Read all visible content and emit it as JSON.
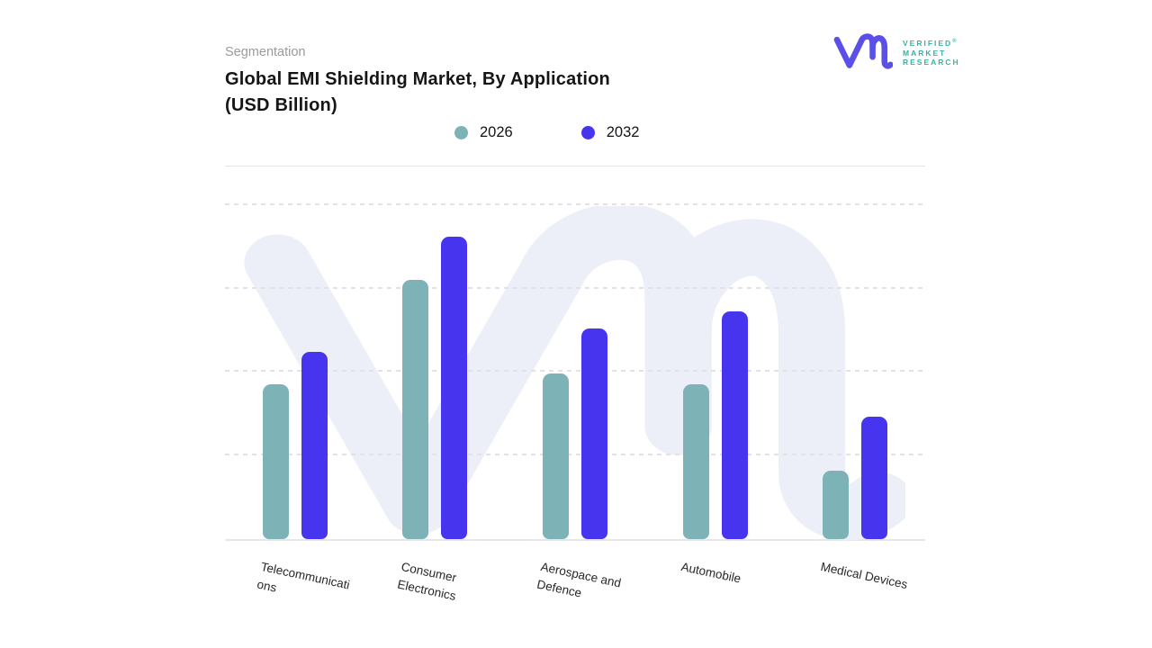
{
  "header": {
    "eyebrow": "Segmentation",
    "title_line1": "Global EMI Shielding Market, By Application",
    "title_line2": "(USD Billion)"
  },
  "logo": {
    "line1": "VERIFIED",
    "line2": "MARKET",
    "line3": "RESEARCH",
    "registered_mark": "®",
    "monogram_color": "#5a50e8",
    "text_color": "#34b3a6"
  },
  "legend": [
    {
      "label": "2026",
      "color": "#7db2b7"
    },
    {
      "label": "2032",
      "color": "#4634ee"
    }
  ],
  "chart_data": {
    "type": "bar",
    "title": "Global EMI Shielding Market, By Application (USD Billion)",
    "categories": [
      "Telecommunications",
      "Consumer Electronics",
      "Aerospace and Defence",
      "Automobile",
      "Medical Devices"
    ],
    "category_label_lines": [
      [
        "Telecommunicati",
        "ons"
      ],
      [
        "Consumer",
        "Electronics"
      ],
      [
        "Aerospace and",
        "Defence"
      ],
      [
        "Automobile"
      ],
      [
        "Medical Devices"
      ]
    ],
    "series": [
      {
        "name": "2026",
        "color": "#7db2b7",
        "values": [
          18.5,
          31.0,
          19.8,
          18.5,
          8.2
        ]
      },
      {
        "name": "2032",
        "color": "#4634ee",
        "values": [
          22.4,
          36.2,
          25.2,
          27.3,
          14.7
        ]
      }
    ],
    "ylim": [
      0,
      40.3
    ],
    "gridlines": [
      10,
      20,
      30,
      40
    ],
    "grid_style": "dashed-horizontal",
    "legend_position": "top",
    "y_axis_labels_visible": false,
    "note": "no numeric data labels shown in figure; values estimated from bar heights, gridline = 10 units"
  },
  "colors": {
    "background": "#ffffff",
    "watermark": "#edeff8",
    "gridline": "#e1e1e7",
    "axis_line": "#e7e7ea",
    "title_text": "#161616",
    "eyebrow_text": "#9b9b9b",
    "axis_label_text": "#27272b"
  }
}
